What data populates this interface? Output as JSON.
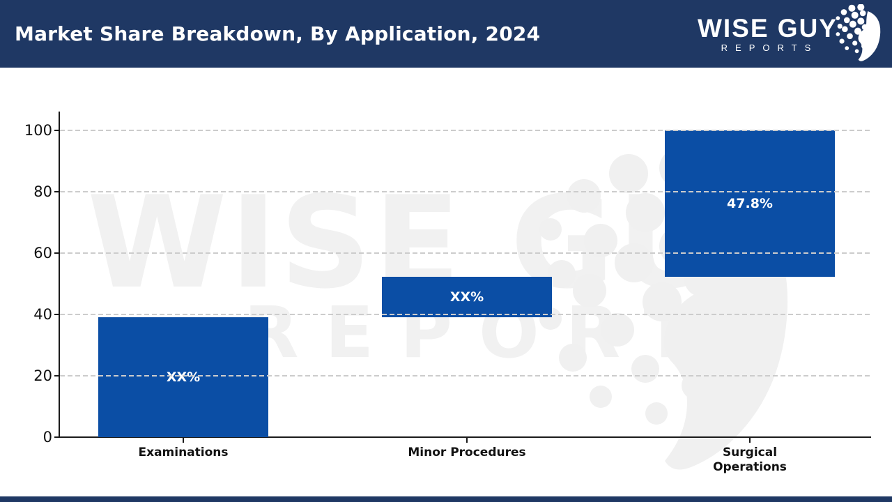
{
  "header": {
    "title": "Market Share Breakdown, By Application, 2024",
    "logo": {
      "line1": "WISE GUY",
      "line2": "REPORTS"
    }
  },
  "watermark": {
    "line1": "WISE GUY",
    "line2": "REPORTS"
  },
  "colors": {
    "header_bg": "#1f3864",
    "footer_bg": "#1f3864",
    "bar_fill": "#0b4ea5",
    "grid": "#cccccc",
    "axis": "#1a1a1a",
    "bar_label": "#ffffff",
    "watermark": "#f1f1f1"
  },
  "chart_data": {
    "type": "bar",
    "subtype": "waterfall",
    "title": "Market Share Breakdown, By Application, 2024",
    "categories": [
      "Examinations",
      "Minor Procedures",
      "Surgical Operations"
    ],
    "bars": [
      {
        "category": "Examinations",
        "start": 0,
        "end": 39,
        "label": "XX%"
      },
      {
        "category": "Minor Procedures",
        "start": 39,
        "end": 52.2,
        "label": "XX%"
      },
      {
        "category": "Surgical Operations",
        "start": 52.2,
        "end": 100,
        "label": "47.8%"
      }
    ],
    "xlabel": "",
    "ylabel": "",
    "ylim": [
      0,
      100
    ],
    "yticks": [
      0,
      20,
      40,
      60,
      80,
      100
    ],
    "grid": "horizontal-dashed",
    "legend": "none"
  }
}
